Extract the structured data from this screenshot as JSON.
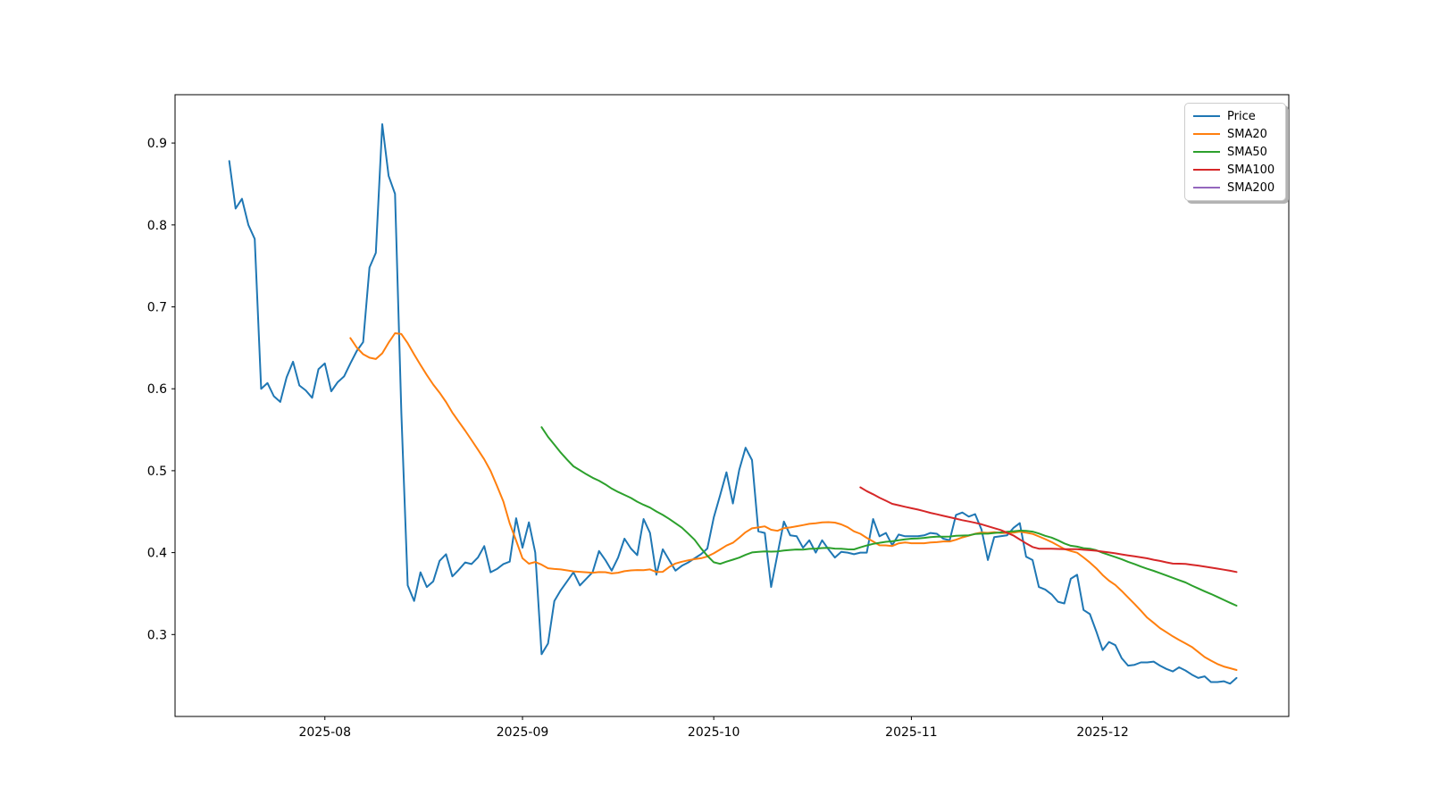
{
  "chart_data": {
    "type": "line",
    "title": "",
    "xlabel": "",
    "ylabel": "",
    "grid": false,
    "background": "#ffffff",
    "legend": {
      "position": "upper right",
      "entries": [
        "Price",
        "SMA20",
        "SMA50",
        "SMA100",
        "SMA200"
      ]
    },
    "x_axis": {
      "start_date": "2025-07-17",
      "frequency": "daily",
      "tick_labels": [
        "2025-08",
        "2025-09",
        "2025-10",
        "2025-11",
        "2025-12"
      ],
      "tick_day_indices": [
        15,
        46,
        76,
        107,
        137
      ],
      "xlim_days": [
        -8.5,
        166.2
      ]
    },
    "y_axis": {
      "tick_values": [
        0.3,
        0.4,
        0.5,
        0.6,
        0.7,
        0.8,
        0.9
      ],
      "tick_labels": [
        "0.3",
        "0.4",
        "0.5",
        "0.6",
        "0.7",
        "0.8",
        "0.9"
      ],
      "ylim": [
        0.2,
        0.959
      ]
    },
    "series": [
      {
        "name": "Price",
        "color": "#1f77b4",
        "kind": "raw",
        "values": [
          0.878,
          0.82,
          0.832,
          0.8,
          0.783,
          0.6,
          0.607,
          0.591,
          0.584,
          0.614,
          0.633,
          0.604,
          0.598,
          0.589,
          0.624,
          0.631,
          0.597,
          0.608,
          0.615,
          0.631,
          0.646,
          0.657,
          0.748,
          0.766,
          0.923,
          0.86,
          0.838,
          0.57,
          0.36,
          0.341,
          0.376,
          0.358,
          0.365,
          0.39,
          0.398,
          0.371,
          0.379,
          0.388,
          0.386,
          0.394,
          0.408,
          0.376,
          0.38,
          0.386,
          0.389,
          0.442,
          0.406,
          0.437,
          0.4,
          0.276,
          0.289,
          0.341,
          0.354,
          0.365,
          0.376,
          0.36,
          0.368,
          0.376,
          0.402,
          0.391,
          0.378,
          0.394,
          0.417,
          0.405,
          0.397,
          0.441,
          0.424,
          0.373,
          0.404,
          0.391,
          0.378,
          0.384,
          0.388,
          0.393,
          0.398,
          0.405,
          0.443,
          0.47,
          0.498,
          0.46,
          0.501,
          0.528,
          0.513,
          0.426,
          0.424,
          0.358,
          0.398,
          0.438,
          0.421,
          0.42,
          0.406,
          0.415,
          0.4,
          0.415,
          0.404,
          0.394,
          0.401,
          0.4,
          0.398,
          0.4,
          0.4,
          0.441,
          0.42,
          0.424,
          0.409,
          0.422,
          0.42,
          0.42,
          0.42,
          0.421,
          0.424,
          0.423,
          0.417,
          0.415,
          0.446,
          0.449,
          0.444,
          0.447,
          0.428,
          0.391,
          0.419,
          0.42,
          0.421,
          0.43,
          0.436,
          0.395,
          0.391,
          0.358,
          0.355,
          0.349,
          0.34,
          0.338,
          0.368,
          0.373,
          0.33,
          0.325,
          0.304,
          0.281,
          0.291,
          0.287,
          0.271,
          0.262,
          0.263,
          0.266,
          0.266,
          0.267,
          0.262,
          0.258,
          0.255,
          0.26,
          0.256,
          0.251,
          0.247,
          0.249,
          0.242,
          0.242,
          0.243,
          0.24,
          0.247
        ]
      },
      {
        "name": "SMA20",
        "color": "#ff7f0e",
        "kind": "sma",
        "window": 20
      },
      {
        "name": "SMA50",
        "color": "#2ca02c",
        "kind": "sma",
        "window": 50
      },
      {
        "name": "SMA100",
        "color": "#d62728",
        "kind": "sma",
        "window": 100
      },
      {
        "name": "SMA200",
        "color": "#9467bd",
        "kind": "sma",
        "window": 200
      }
    ]
  }
}
